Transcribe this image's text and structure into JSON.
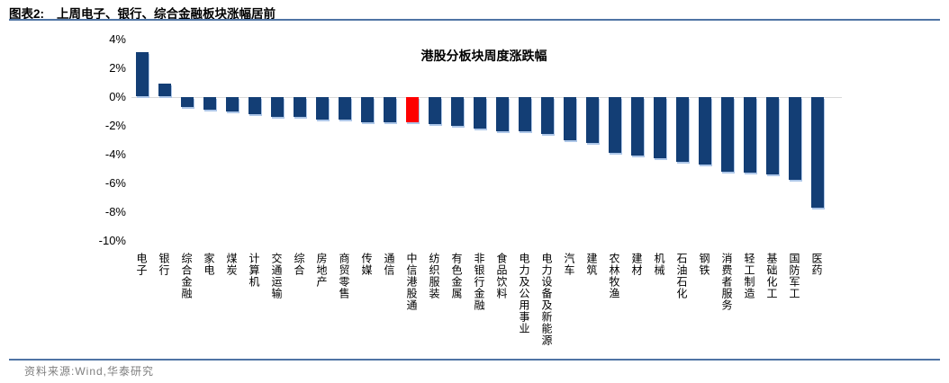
{
  "figure": {
    "label": "图表2:",
    "title": "上周电子、银行、综合金融板块涨幅居前",
    "source": "资料来源:Wind,华泰研究"
  },
  "chart_data": {
    "type": "bar",
    "title": "港股分板块周度涨跌幅",
    "categories": [
      "电子",
      "银行",
      "综合金融",
      "家电",
      "煤炭",
      "计算机",
      "交通运输",
      "综合",
      "房地产",
      "商贸零售",
      "传媒",
      "通信",
      "中信港股通",
      "纺织服装",
      "有色金属",
      "非银行金融",
      "食品饮料",
      "电力及公用事业",
      "电力设备及新能源",
      "汽车",
      "建筑",
      "农林牧渔",
      "建材",
      "机械",
      "石油石化",
      "钢铁",
      "消费者服务",
      "轻工制造",
      "基础化工",
      "国防军工",
      "医药"
    ],
    "values": [
      3.1,
      0.9,
      -0.7,
      -0.9,
      -1.0,
      -1.2,
      -1.4,
      -1.4,
      -1.6,
      -1.6,
      -1.8,
      -1.8,
      -1.8,
      -1.9,
      -2.0,
      -2.2,
      -2.4,
      -2.4,
      -2.6,
      -3.0,
      -3.2,
      -3.9,
      -4.1,
      -4.3,
      -4.5,
      -4.7,
      -5.2,
      -5.3,
      -5.4,
      -5.8,
      -7.7
    ],
    "unit": "%",
    "highlight_category": "中信港股通",
    "ylim": [
      -10,
      4
    ],
    "ytick_labels": [
      "4%",
      "2%",
      "0%",
      "-2%",
      "-4%",
      "-6%",
      "-8%",
      "-10%"
    ],
    "ytick_values": [
      4,
      2,
      0,
      -2,
      -4,
      -6,
      -8,
      -10
    ],
    "grid": false,
    "legend": "none"
  },
  "colors": {
    "bar_navy": "#133e75",
    "bar_edge": "#aec7e8",
    "highlight_red": "#fe0000",
    "rule_blue": "#4f74a5",
    "zero_line": "#d9d9d9",
    "source_gray": "#7f7f7f"
  }
}
